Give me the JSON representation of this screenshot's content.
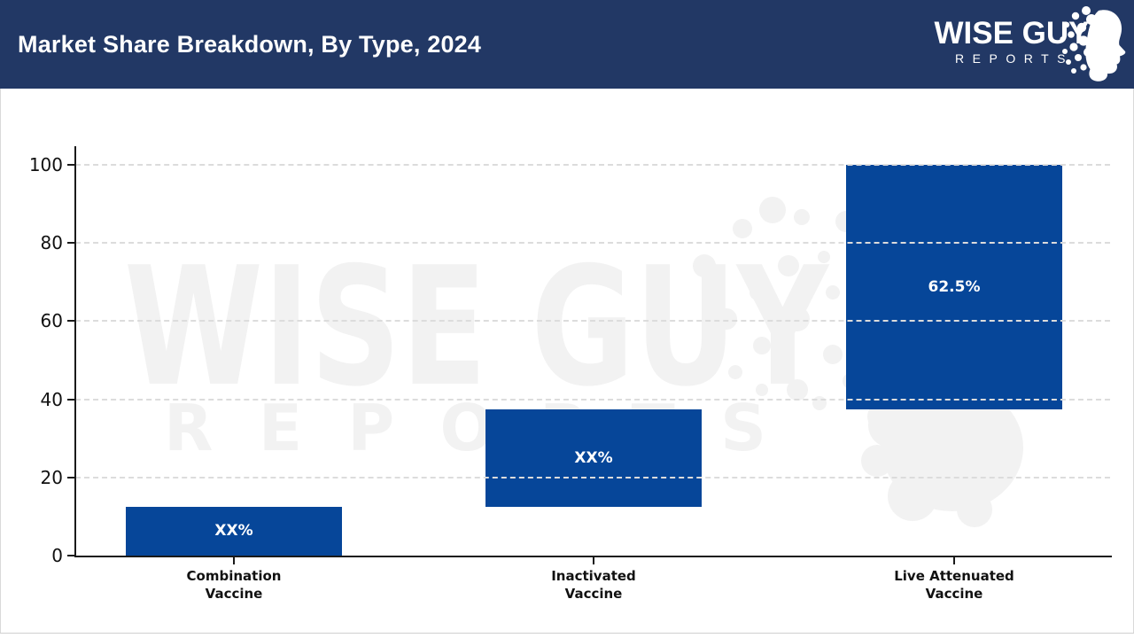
{
  "header": {
    "title": "Market Share Breakdown, By Type, 2024",
    "bg_color": "#223865",
    "logo": {
      "brand": "WISE GUY",
      "sub": "REPORTS"
    }
  },
  "watermark": {
    "line1": "WISE GUY",
    "line2": "REPORTS",
    "color": "#f2f2f2"
  },
  "chart_data": {
    "type": "bar",
    "subtype": "floating-waterfall-segments",
    "title": "Market Share Breakdown, By Type, 2024",
    "xlabel": "",
    "ylabel": "",
    "categories": [
      [
        "Combination",
        "Vaccine"
      ],
      [
        "Inactivated",
        "Vaccine"
      ],
      [
        "Live Attenuated",
        "Vaccine"
      ]
    ],
    "bars": [
      {
        "category": "Combination Vaccine",
        "start": 0,
        "end": 12.5,
        "label": "XX%"
      },
      {
        "category": "Inactivated Vaccine",
        "start": 12.5,
        "end": 37.5,
        "label": "XX%"
      },
      {
        "category": "Live Attenuated Vaccine",
        "start": 37.5,
        "end": 100,
        "label": "62.5%"
      }
    ],
    "ylim": [
      0,
      100
    ],
    "yticks": [
      0,
      20,
      40,
      60,
      80,
      100
    ],
    "grid": "horizontal-dashed",
    "legend": "none",
    "bar_color": "#064699",
    "gridline_color": "#dcdcdc",
    "axis_color": "#1a1a1a"
  }
}
